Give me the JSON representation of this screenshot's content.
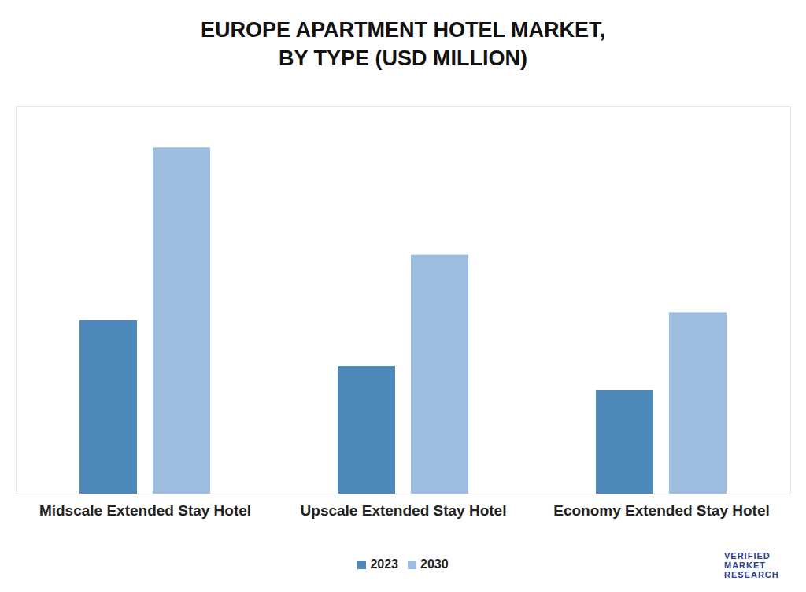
{
  "chart_data": {
    "type": "bar",
    "title": "EUROPE APARTMENT HOTEL MARKET,\nBY TYPE (USD MILLION)",
    "categories": [
      "Midscale Extended Stay Hotel",
      "Upscale Extended Stay Hotel",
      "Economy Extended Stay Hotel"
    ],
    "series": [
      {
        "name": "2023",
        "color": "#4f88bb",
        "values": [
          215,
          158,
          128
        ]
      },
      {
        "name": "2030",
        "color": "#9dbde0",
        "values": [
          429,
          296,
          225
        ]
      }
    ],
    "ylim": [
      0,
      480
    ],
    "yticks": [],
    "tick_labels": "x",
    "grid": false,
    "legend": "bottom",
    "source": "VERIFIED MARKET RESEARCH"
  }
}
